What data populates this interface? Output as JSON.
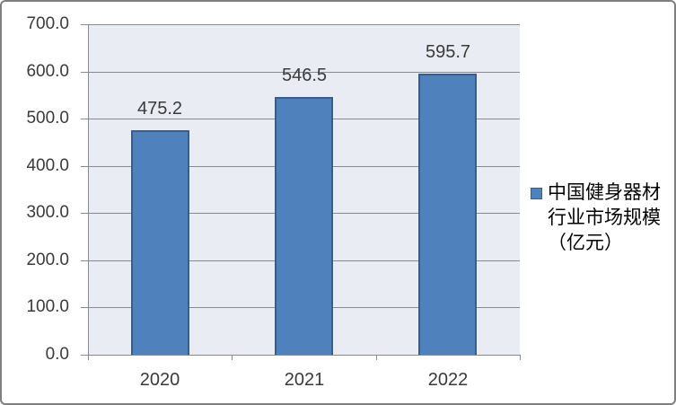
{
  "chart_data": {
    "type": "bar",
    "categories": [
      "2020",
      "2021",
      "2022"
    ],
    "values": [
      475.2,
      546.5,
      595.7
    ],
    "data_labels": [
      "475.2",
      "546.5",
      "595.7"
    ],
    "title": "",
    "xlabel": "",
    "ylabel": "",
    "ylim": [
      0,
      700
    ],
    "y_tick_step": 100,
    "y_tick_labels": [
      "700.0",
      "600.0",
      "500.0",
      "400.0",
      "300.0",
      "200.0",
      "100.0",
      "0.0"
    ],
    "grid": true,
    "legend": {
      "position": "right",
      "label": "中国健身器材行业市场规模（亿元）",
      "lines": [
        "中国健身器材",
        "行业市场规模",
        "（亿元）"
      ]
    },
    "colors": {
      "bar_fill": "#4F81BD",
      "bar_border": "#385D8A",
      "plot_background": "#E9ECF3",
      "gridline": "#868B93",
      "axis": "#868B93",
      "text": "#3A3A3A",
      "frame_border": "#7F7F7F",
      "background": "#FFFFFF"
    }
  }
}
